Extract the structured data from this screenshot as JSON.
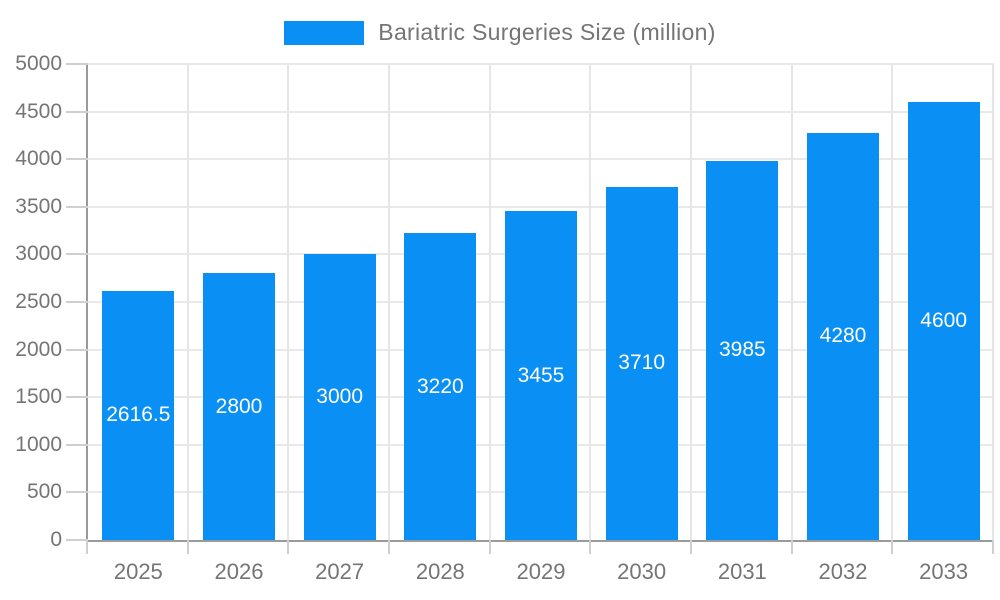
{
  "legend": {
    "label": "Bariatric Surgeries Size (million)"
  },
  "chart_data": {
    "type": "bar",
    "title": "Bariatric Surgeries Size (million)",
    "series_name": "Bariatric Surgeries Size (million)",
    "categories": [
      "2025",
      "2026",
      "2027",
      "2028",
      "2029",
      "2030",
      "2031",
      "2032",
      "2033"
    ],
    "values": [
      2616.5,
      2800,
      3000,
      3220,
      3455,
      3710,
      3985,
      4280,
      4600
    ],
    "value_labels": [
      "2616.5",
      "2800",
      "3000",
      "3220",
      "3455",
      "3710",
      "3985",
      "4280",
      "4600"
    ],
    "xlabel": "",
    "ylabel": "",
    "ylim": [
      0,
      5000
    ],
    "ytick_step": 500,
    "yticks": [
      0,
      500,
      1000,
      1500,
      2000,
      2500,
      3000,
      3500,
      4000,
      4500,
      5000
    ],
    "grid": true,
    "legend_position": "top",
    "bar_color": "#0a90f5",
    "bar_label_color": "#ffffff",
    "axis_text_color": "#757575",
    "axis_line_color": "#9a9a9a",
    "gridline_color": "#e8e8e8"
  }
}
